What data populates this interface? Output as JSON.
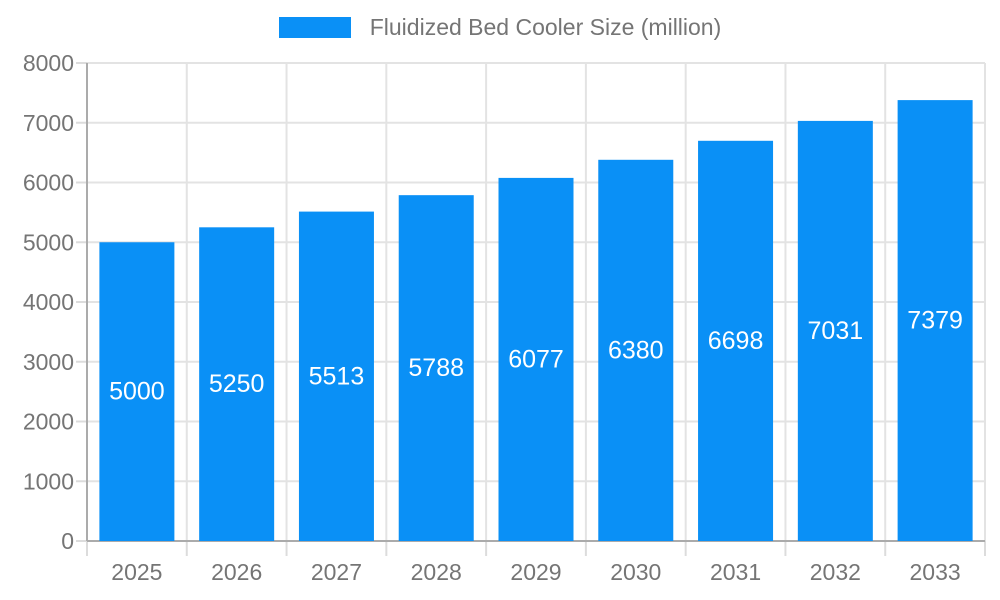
{
  "legend": {
    "label": "Fluidized Bed Cooler Size (million)"
  },
  "chart_data": {
    "type": "bar",
    "title": "Fluidized Bed Cooler Size (million)",
    "categories": [
      "2025",
      "2026",
      "2027",
      "2028",
      "2029",
      "2030",
      "2031",
      "2032",
      "2033"
    ],
    "values": [
      5000,
      5250,
      5513,
      5788,
      6077,
      6380,
      6698,
      7031,
      7379
    ],
    "xlabel": "",
    "ylabel": "",
    "ylim": [
      0,
      8000
    ],
    "ytick_interval": 1000,
    "ytick_labels": [
      "0",
      "1000",
      "2000",
      "3000",
      "4000",
      "5000",
      "6000",
      "7000",
      "8000"
    ],
    "grid": true,
    "legend_position": "top",
    "bar_color": "#0A90F6",
    "value_label_color": "#FFFFFF",
    "axis_text_color": "#757575",
    "grid_color": "#E3E3E3",
    "tick_color": "#DCDCDC",
    "axis_line_color": "#ABABAB"
  }
}
